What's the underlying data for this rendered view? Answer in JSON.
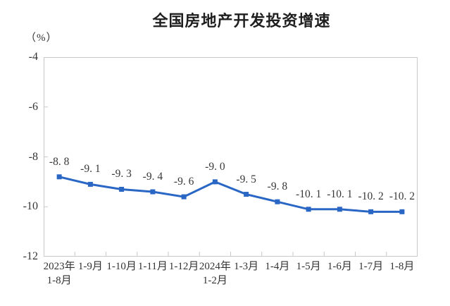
{
  "chart_data": {
    "type": "line",
    "title": "全国房地产开发投资增速",
    "unit_label": "（%）",
    "categories": [
      "2023年\n1-8月",
      "1-9月",
      "1-10月",
      "1-11月",
      "1-12月",
      "2024年\n1-2月",
      "1-3月",
      "1-4月",
      "1-5月",
      "1-6月",
      "1-7月",
      "1-8月"
    ],
    "series": [
      {
        "name": "全国房地产开发投资增速",
        "values": [
          -8.8,
          -9.1,
          -9.3,
          -9.4,
          -9.6,
          -9.0,
          -9.5,
          -9.8,
          -10.1,
          -10.1,
          -10.2,
          -10.2
        ]
      }
    ],
    "data_labels": [
      "-8. 8",
      "-9. 1",
      "-9. 3",
      "-9. 4",
      "-9. 6",
      "-9. 0",
      "-9. 5",
      "-9. 8",
      "-10. 1",
      "-10. 1",
      "-10. 2",
      "-10. 2"
    ],
    "y_ticks": [
      -4,
      -6,
      -8,
      -10,
      -12
    ],
    "y_tick_labels": [
      "-4",
      "-6",
      "-8",
      "-10",
      "-12"
    ],
    "ylim": [
      -12,
      -4
    ],
    "xlabel": "",
    "ylabel": "（%）",
    "grid": false,
    "legend_position": "none",
    "line_color": "#2A67C5",
    "marker": "square",
    "marker_color": "#2A67C5",
    "axis_color": "#C9C9C9",
    "tick_color": "#C9C9C9",
    "title_color": "#1F1F1F",
    "label_color": "#383838",
    "background_color": "#FFFFFF"
  }
}
